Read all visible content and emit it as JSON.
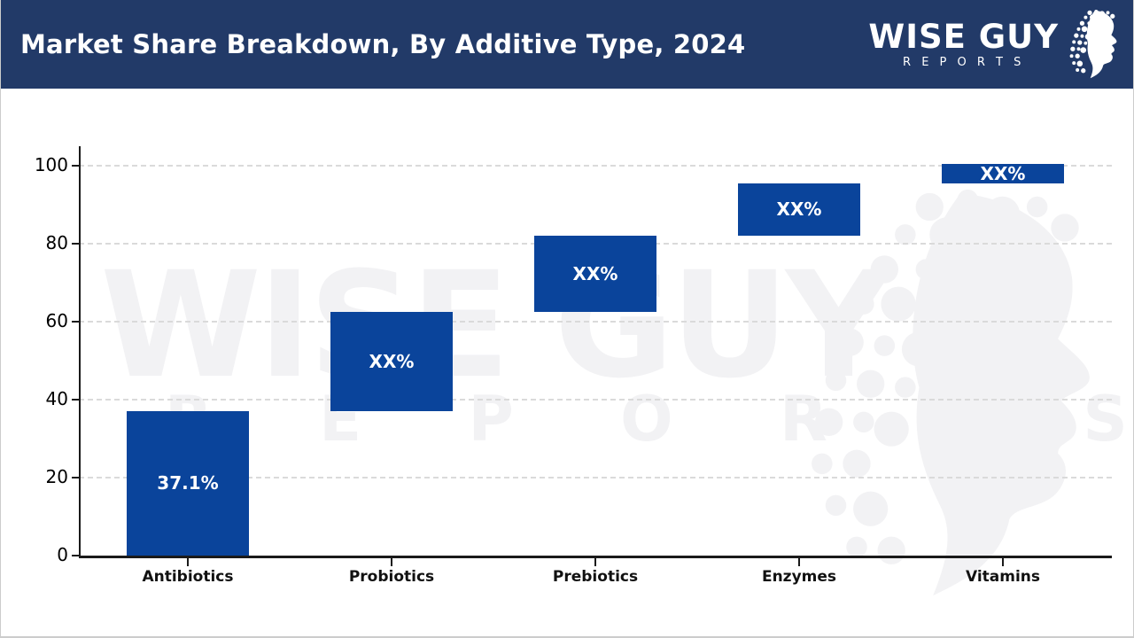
{
  "header": {
    "title": "Market Share Breakdown, By Additive Type, 2024",
    "logo": {
      "line1": "WISE GUY",
      "line2": "R E P O R T S",
      "icon": "face-profile-dots-icon"
    }
  },
  "watermark": {
    "line1": "WISE GUY",
    "line2": "R E P O R T S",
    "icon": "face-profile-dots-icon"
  },
  "colors": {
    "header_bg": "#223a68",
    "bar": "#0a449b",
    "bar_label_text": "#ffffff",
    "grid": "#dadada",
    "axis": "#1a1a1a",
    "watermark": "#f2f2f4",
    "page_border": "#cccccc"
  },
  "chart_data": {
    "type": "bar",
    "subtype": "waterfall",
    "title": "Market Share Breakdown, By Additive Type, 2024",
    "xlabel": "",
    "ylabel": "",
    "categories": [
      "Antibiotics",
      "Probiotics",
      "Prebiotics",
      "Enzymes",
      "Vitamins"
    ],
    "segments": [
      {
        "category": "Antibiotics",
        "start": 0,
        "end": 37.1,
        "label": "37.1%"
      },
      {
        "category": "Probiotics",
        "start": 37.1,
        "end": 62.4,
        "label": "XX%"
      },
      {
        "category": "Prebiotics",
        "start": 62.4,
        "end": 82.0,
        "label": "XX%"
      },
      {
        "category": "Enzymes",
        "start": 82.0,
        "end": 95.5,
        "label": "XX%"
      },
      {
        "category": "Vitamins",
        "start": 95.5,
        "end": 100.5,
        "label": "XX%"
      }
    ],
    "y_ticks": [
      0,
      20,
      40,
      60,
      80,
      100
    ],
    "ylim": [
      0,
      104
    ],
    "grid": "horizontal-dashed",
    "legend": "none"
  }
}
